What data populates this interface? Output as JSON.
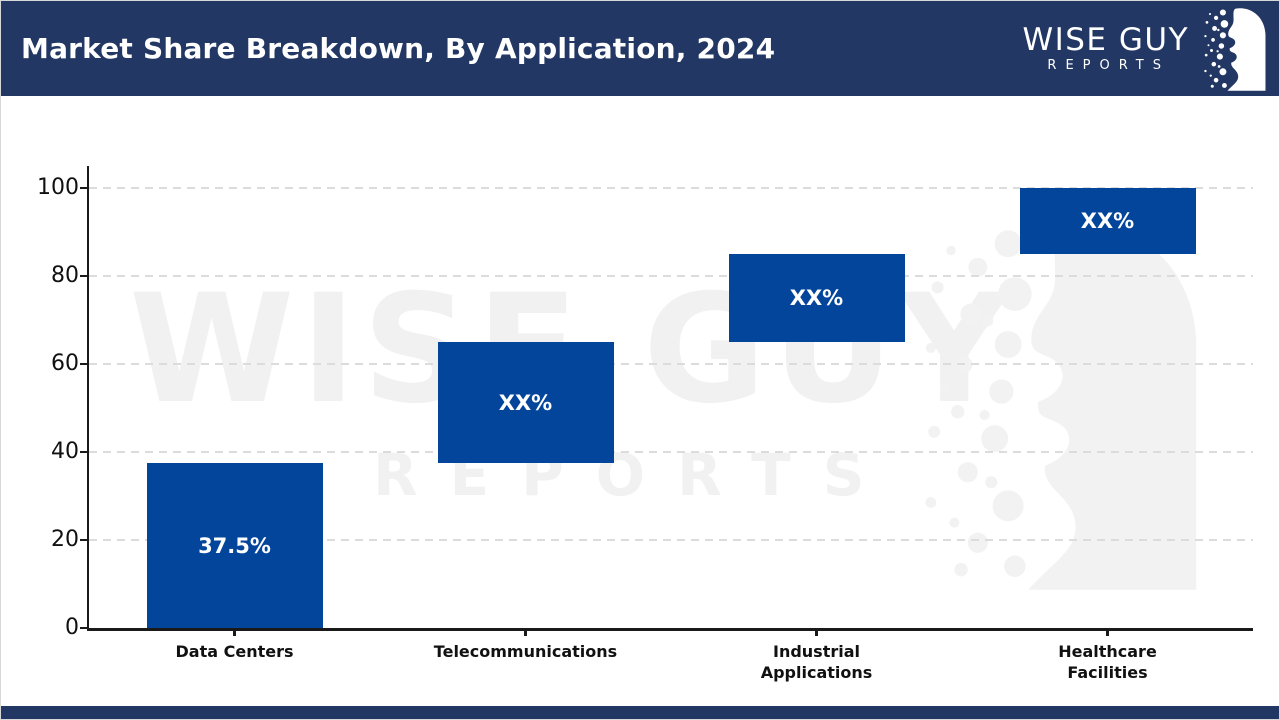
{
  "header": {
    "title": "Market Share Breakdown, By Application, 2024",
    "bg_color": "#223763",
    "logo": {
      "wordmark": "WISE GUY",
      "subtitle": "REPORTS"
    }
  },
  "watermark": {
    "wordmark": "WISE GUY",
    "subtitle": "REPORTS"
  },
  "chart_data": {
    "type": "bar",
    "subtype": "floating-segment-waterfall",
    "title": "Market Share Breakdown, By Application, 2024",
    "categories": [
      "Data Centers",
      "Telecommunications",
      "Industrial Applications",
      "Healthcare Facilities"
    ],
    "category_lines": [
      [
        "Data Centers"
      ],
      [
        "Telecommunications"
      ],
      [
        "Industrial",
        "Applications"
      ],
      [
        "Healthcare",
        "Facilities"
      ]
    ],
    "series": [
      {
        "name": "Market Share (%)",
        "segments": [
          {
            "category": "Data Centers",
            "start": 0,
            "end": 37.5,
            "label": "37.5%"
          },
          {
            "category": "Telecommunications",
            "start": 37.5,
            "end": 65,
            "label": "XX%"
          },
          {
            "category": "Industrial Applications",
            "start": 65,
            "end": 85,
            "label": "XX%"
          },
          {
            "category": "Healthcare Facilities",
            "start": 85,
            "end": 100,
            "label": "XX%"
          }
        ]
      }
    ],
    "ylim": [
      0,
      100
    ],
    "yticks": [
      0,
      20,
      40,
      60,
      80,
      100
    ],
    "xlabel": "",
    "ylabel": "",
    "legend": "none",
    "grid": {
      "horizontal": true,
      "style": "dashed",
      "color": "#dcdcdc"
    },
    "bar_color": "#04459c",
    "bar_label_color": "#ffffff",
    "axis_color": "#1a1a1a"
  },
  "footer": {
    "bg_color": "#223763"
  }
}
